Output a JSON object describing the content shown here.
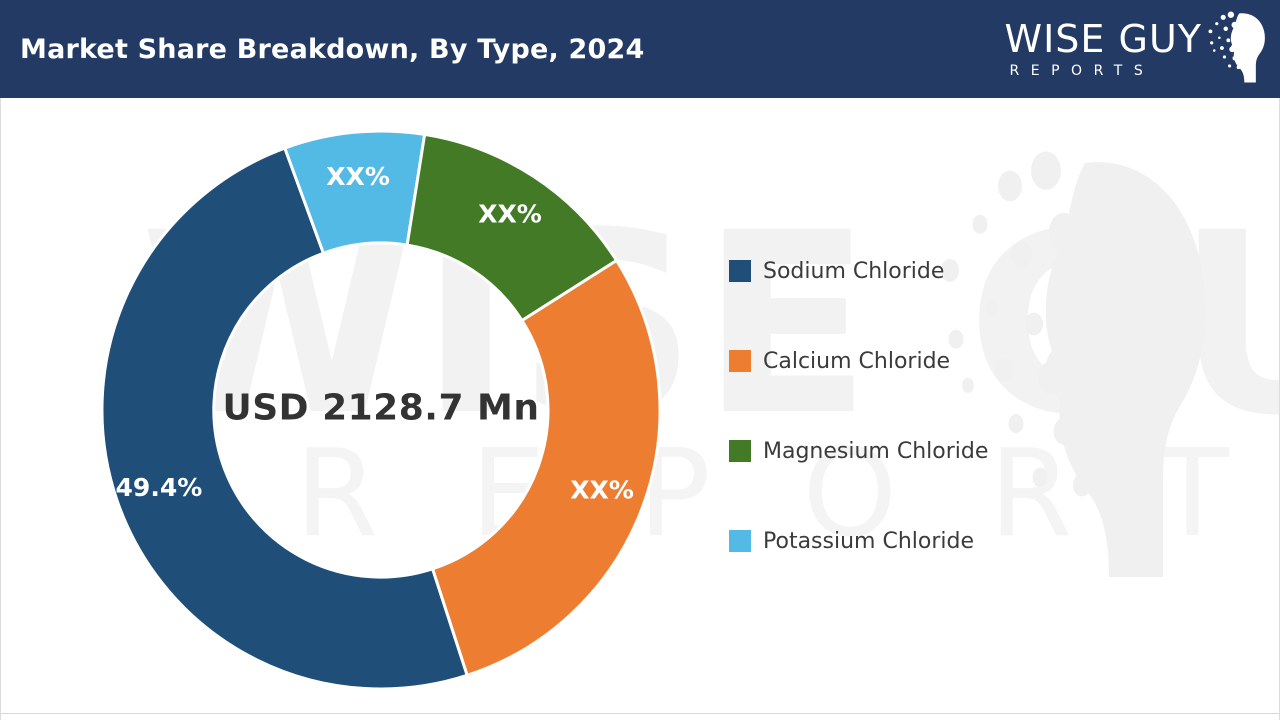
{
  "header": {
    "title": "Market Share Breakdown, By Type, 2024",
    "logo": {
      "line1": "WISE GUY",
      "line2": "REPORTS"
    }
  },
  "watermark": {
    "line1": "WISE GUY",
    "line2": "REPORTS"
  },
  "chart_data": {
    "type": "pie",
    "subtype": "donut",
    "title": "Market Share Breakdown, By Type, 2024",
    "center_label": "USD 2128.7 Mn",
    "start_angle_deg": 162,
    "direction": "clockwise",
    "segments": [
      {
        "name": "Sodium Chloride",
        "value_pct": 49.4,
        "label": "49.4%",
        "color": "#1F4E79"
      },
      {
        "name": "Potassium Chloride",
        "value_pct": 8.1,
        "label": "XX%",
        "color": "#52BAE4"
      },
      {
        "name": "Magnesium Chloride",
        "value_pct": 13.5,
        "label": "XX%",
        "color": "#437A26"
      },
      {
        "name": "Calcium Chloride",
        "value_pct": 29.0,
        "label": "XX%",
        "color": "#ED7D31"
      }
    ],
    "legend": [
      {
        "label": "Sodium Chloride",
        "color": "#1F4E79"
      },
      {
        "label": "Calcium Chloride",
        "color": "#ED7D31"
      },
      {
        "label": "Magnesium Chloride",
        "color": "#437A26"
      },
      {
        "label": "Potassium Chloride",
        "color": "#52BAE4"
      }
    ],
    "legend_position": "right"
  }
}
